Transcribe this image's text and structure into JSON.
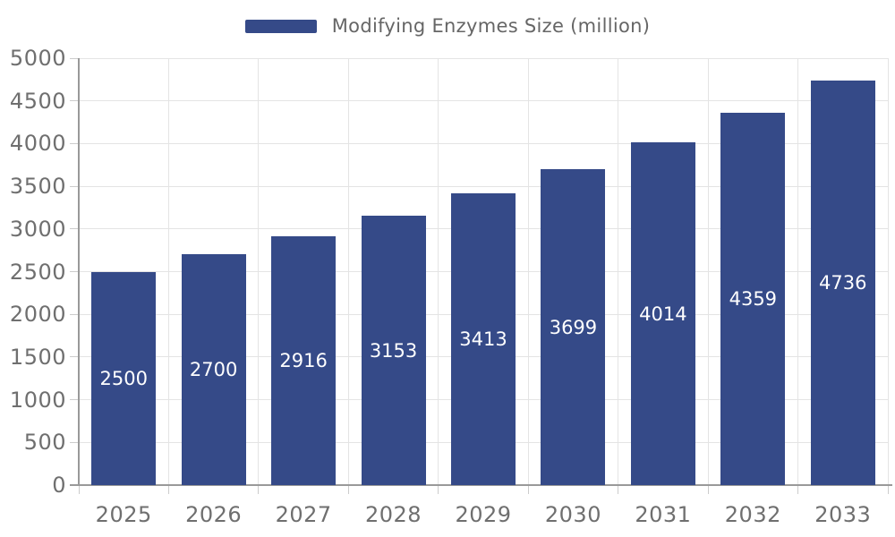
{
  "legend": {
    "label": "Modifying Enzymes Size (million)"
  },
  "chart_data": {
    "type": "bar",
    "title": "Modifying Enzymes Size (million)",
    "categories": [
      "2025",
      "2026",
      "2027",
      "2028",
      "2029",
      "2030",
      "2031",
      "2032",
      "2033"
    ],
    "values": [
      2500,
      2700,
      2916,
      3153,
      3413,
      3699,
      4014,
      4359,
      4736
    ],
    "xlabel": "",
    "ylabel": "",
    "ylim": [
      0,
      5000
    ],
    "ytick_step": 500,
    "grid": true,
    "legend_position": "top-center",
    "bar_labels_inside": true,
    "colors": {
      "bar": "#354a88",
      "bar_label": "#ffffff",
      "axis_label": "#6f6f6f",
      "legend_text": "#666666",
      "gridline": "#e4e4e4",
      "axis_line": "#999999",
      "tick": "#cccccc",
      "background": "#ffffff"
    }
  }
}
